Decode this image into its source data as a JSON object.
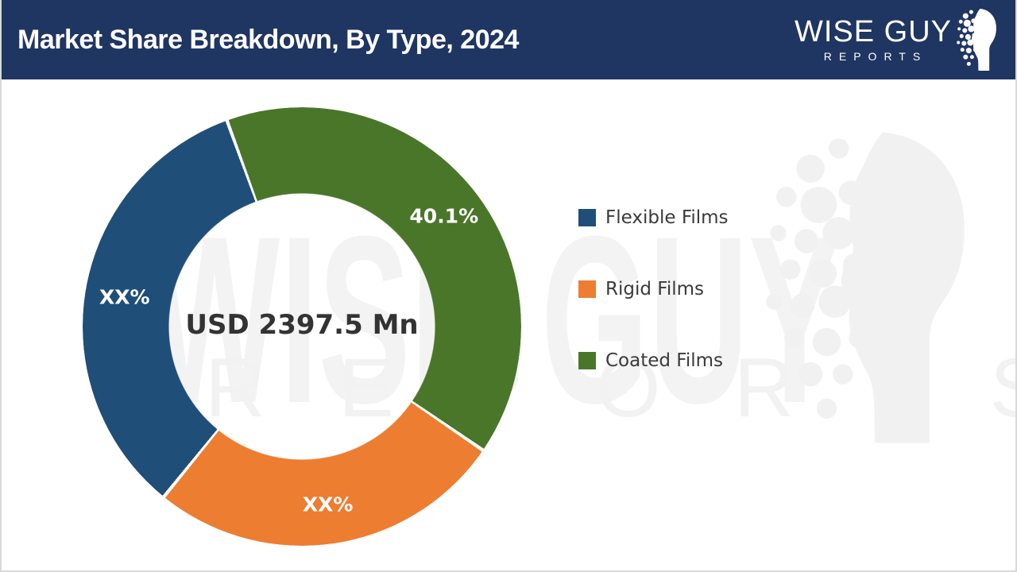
{
  "header": {
    "title": "Market Share Breakdown, By Type, 2024",
    "bg_color": "#1f3562",
    "logo": {
      "line1": "WISE GUY",
      "line2": "REPORTS"
    }
  },
  "chart_data": {
    "type": "pie",
    "subtype": "donut",
    "title": "Market Share Breakdown, By Type, 2024",
    "center_label": "USD 2397.5 Mn",
    "rotation_deg": -20,
    "gap_deg": 0.9,
    "label_color": "#ffffff",
    "legend_position": "right",
    "series": [
      {
        "name": "Coated Films",
        "value": 40.1,
        "display_label": "40.1%",
        "color": "#4a7629"
      },
      {
        "name": "Rigid Films",
        "value": 26.3,
        "display_label": "XX%",
        "color": "#ed7d31"
      },
      {
        "name": "Flexible Films",
        "value": 33.6,
        "display_label": "XX%",
        "color": "#1f4e79"
      }
    ]
  },
  "legend": {
    "items": [
      {
        "label": "Flexible Films",
        "color": "#1f4e79"
      },
      {
        "label": "Rigid Films",
        "color": "#ed7d31"
      },
      {
        "label": "Coated Films",
        "color": "#4a7629"
      }
    ]
  },
  "watermark": {
    "line1": "WISE GUY",
    "line2": "REPORTS"
  }
}
